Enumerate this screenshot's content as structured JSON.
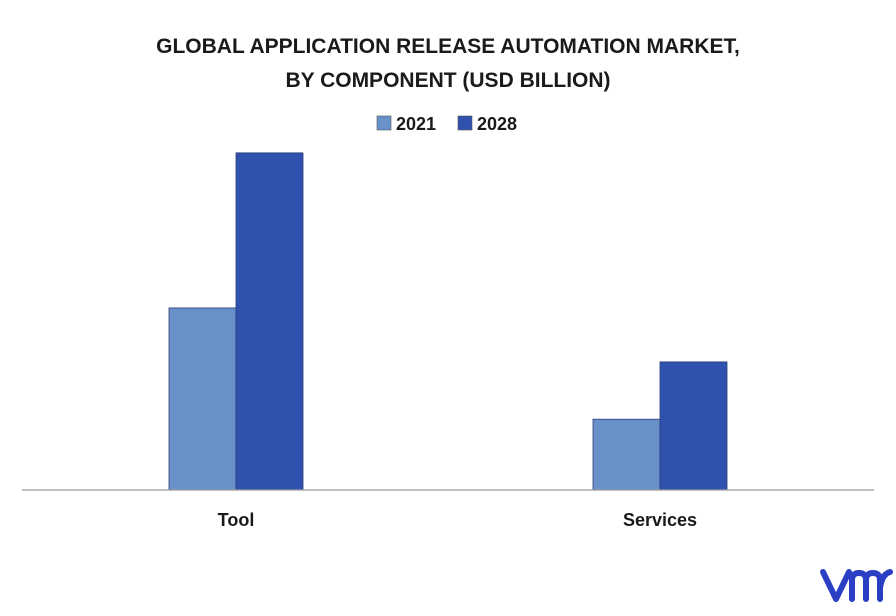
{
  "chart_data": {
    "type": "bar",
    "title_lines": [
      "GLOBAL APPLICATION RELEASE AUTOMATION MARKET,",
      "BY COMPONENT (USD BILLION)"
    ],
    "categories": [
      "Tool",
      "Services"
    ],
    "series": [
      {
        "name": "2021",
        "values": [
          0.54,
          0.21
        ],
        "color": "#6891c9"
      },
      {
        "name": "2028",
        "values": [
          1.0,
          0.38
        ],
        "color": "#2e52ad"
      }
    ],
    "xlabel": "",
    "ylabel": "",
    "ylim": [
      0,
      1.05
    ],
    "grid": false,
    "legend_position": "top-center"
  },
  "logo": {
    "name": "vmr-logo",
    "color": "#2a3fc4"
  },
  "colors": {
    "axis": "#999999",
    "border": "#555555"
  }
}
